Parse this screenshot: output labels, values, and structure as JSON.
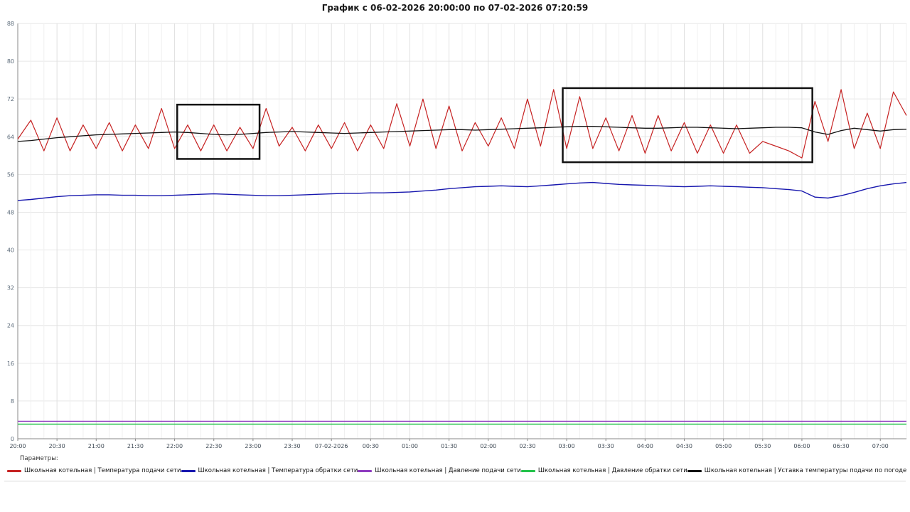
{
  "title": "График с 06-02-2026 20:00:00 по 07-02-2026 07:20:59",
  "legend_label": "Параметры:",
  "chart_data": {
    "type": "line",
    "time_range": {
      "from": "06-02-2026 20:00:00",
      "to": "07-02-2026 07:20:59"
    },
    "x_start_minutes": 0,
    "x_end_minutes": 680,
    "x_step_minutes": 10,
    "x_tick_interval_minutes": 30,
    "x_tick_labels": [
      "20:00",
      "20:30",
      "21:00",
      "21:30",
      "22:00",
      "22:30",
      "23:00",
      "23:30",
      "07-02-2026",
      "00:30",
      "01:00",
      "01:30",
      "02:00",
      "02:30",
      "03:00",
      "03:30",
      "04:00",
      "04:30",
      "05:00",
      "05:30",
      "06:00",
      "06:30",
      "07:00"
    ],
    "ylim": [
      0,
      88
    ],
    "y_tick_interval": 8,
    "grid": true,
    "legend_position": "bottom",
    "series": [
      {
        "id": "supply-temp",
        "name": "Школьная котельная | Температура подачи сети",
        "color": "#c62222",
        "width": 1.2,
        "values": [
          63.5,
          67.5,
          61,
          68,
          61,
          66.5,
          61.5,
          67,
          61,
          66.5,
          61.5,
          70,
          61.5,
          66.5,
          61,
          66.5,
          61,
          66,
          61.5,
          70,
          62,
          66,
          61,
          66.5,
          61.5,
          67,
          61,
          66.5,
          61.5,
          71,
          62,
          72,
          61.5,
          70.5,
          61,
          67,
          62,
          68,
          61.5,
          72,
          62,
          74,
          61.5,
          72.5,
          61.5,
          68,
          61,
          68.5,
          60.5,
          68.5,
          61,
          67,
          60.5,
          66.5,
          60.5,
          66.5,
          60.5,
          63,
          62,
          61,
          59.5,
          71.5,
          63,
          74,
          61.5,
          69,
          61.5,
          73.5,
          68.5
        ]
      },
      {
        "id": "return-temp",
        "name": "Школьная котельная | Температура обратки сети",
        "color": "#1717ae",
        "width": 1.4,
        "values": [
          50.5,
          50.7,
          51,
          51.3,
          51.5,
          51.6,
          51.7,
          51.7,
          51.6,
          51.6,
          51.5,
          51.5,
          51.6,
          51.7,
          51.8,
          51.9,
          51.8,
          51.7,
          51.6,
          51.5,
          51.5,
          51.6,
          51.7,
          51.8,
          51.9,
          52,
          52,
          52.1,
          52.1,
          52.2,
          52.3,
          52.5,
          52.7,
          53,
          53.2,
          53.4,
          53.5,
          53.6,
          53.5,
          53.4,
          53.6,
          53.8,
          54,
          54.2,
          54.3,
          54.1,
          53.9,
          53.8,
          53.7,
          53.6,
          53.5,
          53.4,
          53.5,
          53.6,
          53.5,
          53.4,
          53.3,
          53.2,
          53,
          52.8,
          52.5,
          51.2,
          51,
          51.5,
          52.2,
          53,
          53.6,
          54,
          54.3
        ]
      },
      {
        "id": "supply-pressure",
        "name": "Школьная котельная | Давление подачи сети",
        "color": "#8e3bbf",
        "width": 1.4,
        "constant": 3.7
      },
      {
        "id": "return-pressure",
        "name": "Школьная котельная | Давление обратки сети",
        "color": "#23c24a",
        "width": 1.4,
        "constant": 3.1
      },
      {
        "id": "setpoint-temp",
        "name": "Школьная котельная | Уставка температуры подачи по погоде",
        "color": "#111111",
        "width": 1.3,
        "values": [
          63,
          63.2,
          63.5,
          63.8,
          64,
          64.2,
          64.4,
          64.5,
          64.6,
          64.7,
          64.8,
          64.9,
          65,
          64.9,
          64.7,
          64.5,
          64.4,
          64.5,
          64.7,
          64.9,
          65,
          65.1,
          65,
          64.9,
          64.8,
          64.7,
          64.8,
          64.9,
          65,
          65.1,
          65.2,
          65.3,
          65.4,
          65.5,
          65.5,
          65.4,
          65.5,
          65.6,
          65.7,
          65.8,
          65.9,
          66,
          66.1,
          66.2,
          66.2,
          66.1,
          66,
          65.9,
          65.8,
          65.8,
          65.9,
          66,
          66,
          65.9,
          65.8,
          65.7,
          65.8,
          65.9,
          66,
          66,
          65.9,
          65,
          64.5,
          65.3,
          65.8,
          65.5,
          65.2,
          65.5,
          65.6
        ]
      }
    ],
    "annotations": [
      {
        "type": "rect",
        "t_from": 122,
        "t_to": 185,
        "v_from": 59.3,
        "v_to": 70.8
      },
      {
        "type": "rect",
        "t_from": 417,
        "t_to": 608,
        "v_from": 58.6,
        "v_to": 74.3
      }
    ]
  }
}
